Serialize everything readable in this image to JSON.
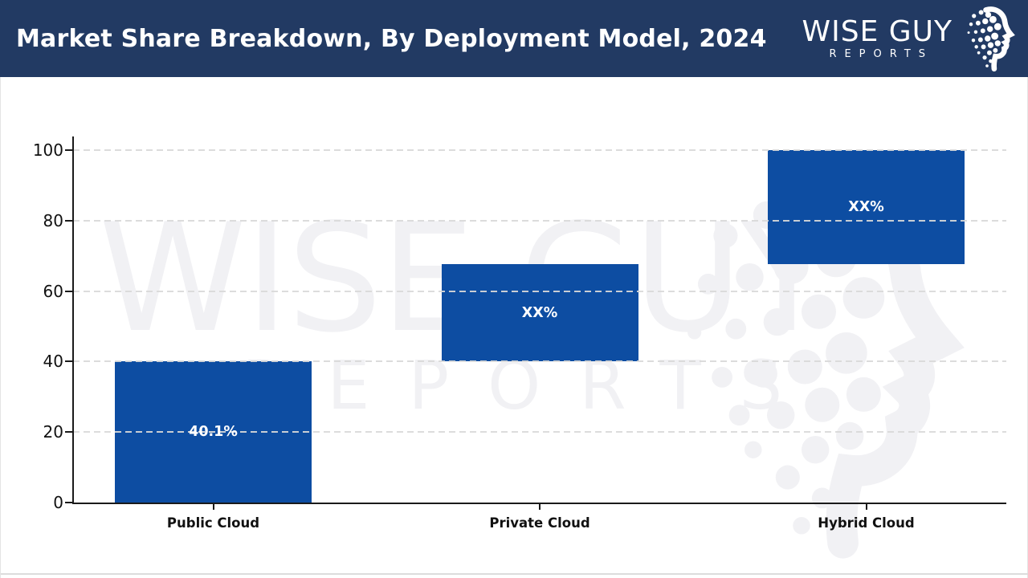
{
  "header": {
    "title": "Market Share Breakdown, By Deployment Model, 2024",
    "logo": {
      "line1": "WISE GUY",
      "line2": "REPORTS"
    }
  },
  "watermark": {
    "line1": "WISE GUY",
    "line2": "REPORTS"
  },
  "colors": {
    "header_bg": "#223a63",
    "bar": "#0d4da2",
    "grid": "#d9d9d9",
    "axis": "#1a1a1a",
    "watermark": "#f1f1f4",
    "bar_label_text": "#ffffff"
  },
  "chart_data": {
    "type": "bar",
    "subtype": "waterfall",
    "title": "Market Share Breakdown, By Deployment Model, 2024",
    "categories": [
      "Public Cloud",
      "Private Cloud",
      "Hybrid Cloud"
    ],
    "segments": [
      {
        "category": "Public Cloud",
        "start": 0,
        "end": 40.1,
        "label": "40.1%"
      },
      {
        "category": "Private Cloud",
        "start": 40.1,
        "end": 67.6,
        "label": "XX%"
      },
      {
        "category": "Hybrid Cloud",
        "start": 67.6,
        "end": 100,
        "label": "XX%"
      }
    ],
    "xlabel": "",
    "ylabel": "",
    "yticks": [
      0,
      20,
      40,
      60,
      80,
      100
    ],
    "ylim": [
      0,
      104
    ],
    "grid": "horizontal-dashed",
    "grid_above_bars": true,
    "legend": "none",
    "bar_color": "#0d4da2"
  }
}
